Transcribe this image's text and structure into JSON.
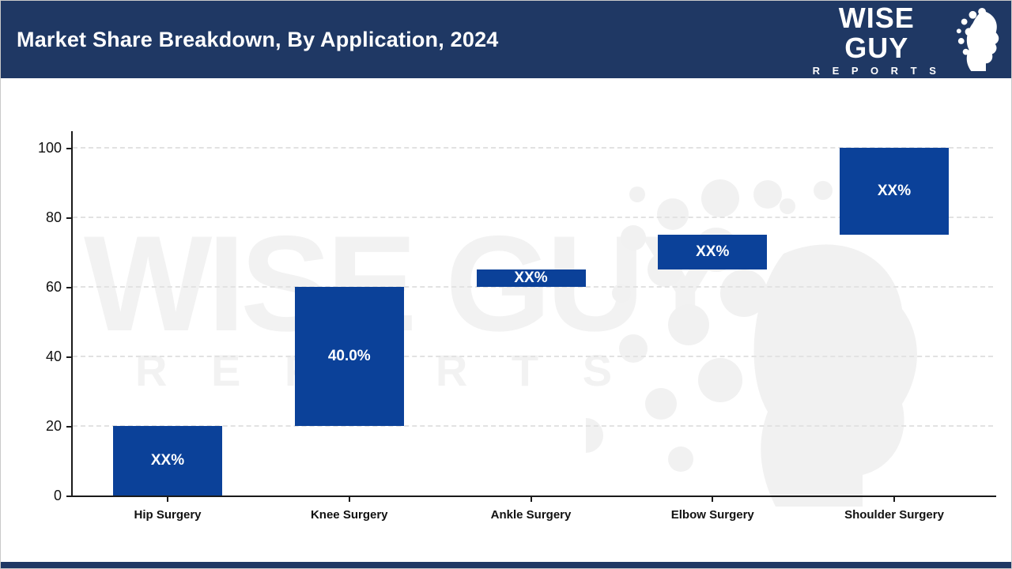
{
  "header": {
    "title": "Market Share Breakdown, By Application, 2024",
    "logo": {
      "line1": "WISE GUY",
      "line2": "R E P O R T S"
    }
  },
  "watermark": {
    "line1": "WISE GUY",
    "line2": "R E P O R T S"
  },
  "colors": {
    "header_bg": "#1f3864",
    "footer_bg": "#1f3864",
    "bar": "#0b4199",
    "grid": "#e2e2e2",
    "axis": "#1a1a1a",
    "watermark": "#f2f2f2"
  },
  "chart_data": {
    "type": "bar",
    "subtype": "waterfall",
    "title": "Market Share Breakdown, By Application, 2024",
    "categories": [
      "Hip Surgery",
      "Knee Surgery",
      "Ankle Surgery",
      "Elbow Surgery",
      "Shoulder Surgery"
    ],
    "bars": [
      {
        "category": "Hip Surgery",
        "start": 0,
        "end": 20,
        "label": "XX%"
      },
      {
        "category": "Knee Surgery",
        "start": 20,
        "end": 60,
        "label": "40.0%"
      },
      {
        "category": "Ankle Surgery",
        "start": 60,
        "end": 65,
        "label": "XX%"
      },
      {
        "category": "Elbow Surgery",
        "start": 65,
        "end": 75,
        "label": "XX%"
      },
      {
        "category": "Shoulder Surgery",
        "start": 75,
        "end": 100,
        "label": "XX%"
      }
    ],
    "yticks": [
      0,
      20,
      40,
      60,
      80,
      100
    ],
    "ylim": [
      0,
      104
    ],
    "xlabel": "",
    "ylabel": "",
    "grid": "horizontal-dashed",
    "legend": "none"
  }
}
